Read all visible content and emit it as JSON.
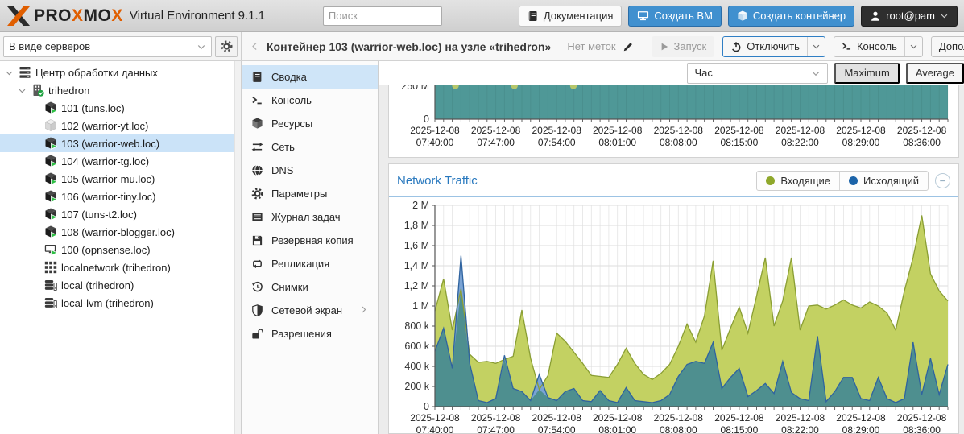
{
  "header": {
    "brand": "PROXMOX",
    "product": "Virtual Environment",
    "version": "9.1.1",
    "search_placeholder": "Поиск",
    "buttons": {
      "docs": "Документация",
      "create_vm": "Создать ВМ",
      "create_ct": "Создать контейнер",
      "user": "root@pam"
    }
  },
  "sidebar": {
    "view_select": "В виде серверов",
    "tree": [
      {
        "name": "datacenter",
        "label": "Центр обработки данных",
        "icon": "datacenter",
        "level": 0,
        "arrow": true
      },
      {
        "name": "node-trihedron",
        "label": "trihedron",
        "icon": "node",
        "level": 1,
        "arrow": true
      },
      {
        "name": "ct-101",
        "label": "101 (tuns.loc)",
        "icon": "ct-running",
        "level": 2
      },
      {
        "name": "ct-102",
        "label": "102 (warrior-yt.loc)",
        "icon": "ct-stopped",
        "level": 2
      },
      {
        "name": "ct-103",
        "label": "103 (warrior-web.loc)",
        "icon": "ct-running",
        "level": 2,
        "selected": true
      },
      {
        "name": "ct-104",
        "label": "104 (warrior-tg.loc)",
        "icon": "ct-running",
        "level": 2
      },
      {
        "name": "ct-105",
        "label": "105 (warrior-mu.loc)",
        "icon": "ct-running",
        "level": 2
      },
      {
        "name": "ct-106",
        "label": "106 (warrior-tiny.loc)",
        "icon": "ct-running",
        "level": 2
      },
      {
        "name": "ct-107",
        "label": "107 (tuns-t2.loc)",
        "icon": "ct-running",
        "level": 2
      },
      {
        "name": "ct-108",
        "label": "108 (warrior-blogger.loc)",
        "icon": "ct-running",
        "level": 2
      },
      {
        "name": "vm-100",
        "label": "100 (opnsense.loc)",
        "icon": "vm-running",
        "level": 2
      },
      {
        "name": "sdn-localnetwork",
        "label": "localnetwork (trihedron)",
        "icon": "network",
        "level": 2
      },
      {
        "name": "storage-local",
        "label": "local (trihedron)",
        "icon": "storage",
        "level": 2
      },
      {
        "name": "storage-local-lvm",
        "label": "local-lvm (trihedron)",
        "icon": "storage",
        "level": 2
      }
    ]
  },
  "breadcrumb": {
    "title": "Контейнер 103 (warrior-web.loc) на узле «trihedron»",
    "tags_label": "Нет меток",
    "actions": {
      "start": "Запуск",
      "shutdown": "Отключить",
      "console": "Консоль",
      "more": "Дополнительно"
    }
  },
  "nav": {
    "items": [
      {
        "name": "summary",
        "label": "Сводка",
        "icon": "book",
        "selected": true
      },
      {
        "name": "console",
        "label": "Консоль",
        "icon": "terminal"
      },
      {
        "name": "resources",
        "label": "Ресурсы",
        "icon": "cube"
      },
      {
        "name": "network",
        "label": "Сеть",
        "icon": "exchange"
      },
      {
        "name": "dns",
        "label": "DNS",
        "icon": "globe"
      },
      {
        "name": "options",
        "label": "Параметры",
        "icon": "gear"
      },
      {
        "name": "task-history",
        "label": "Журнал задач",
        "icon": "tasklist"
      },
      {
        "name": "backup",
        "label": "Резервная копия",
        "icon": "floppy"
      },
      {
        "name": "replication",
        "label": "Репликация",
        "icon": "retweet"
      },
      {
        "name": "snapshots",
        "label": "Снимки",
        "icon": "history"
      },
      {
        "name": "firewall",
        "label": "Сетевой экран",
        "icon": "shield",
        "submenu": true
      },
      {
        "name": "permissions",
        "label": "Разрешения",
        "icon": "unlock"
      }
    ]
  },
  "toolbar": {
    "range": "Час",
    "max": "Maximum",
    "avg": "Average"
  },
  "chart_data": [
    {
      "id": "memory-chart-partial",
      "type": "area",
      "note_visible_part": "bottom sliver only (panel scrolled under toolbar)",
      "y_tick_labels": [
        "250 M",
        "0"
      ],
      "x_date": "2025-12-08",
      "x_times": [
        "07:40:00",
        "07:47:00",
        "07:54:00",
        "08:01:00",
        "08:08:00",
        "08:15:00",
        "08:22:00",
        "08:29:00",
        "08:36:00"
      ],
      "area_color": "#4f9897",
      "area_fills_visible_height": true,
      "usage_bump_fracs": [
        0.04,
        0.155,
        0.27
      ],
      "bump_color": "#c8cf63"
    },
    {
      "id": "network-traffic",
      "type": "area",
      "title": "Network Traffic",
      "legend": [
        {
          "label": "Входящие",
          "color": "#8fa82b"
        },
        {
          "label": "Исходящий",
          "color": "#1c64a9"
        }
      ],
      "ymax_k": 2000,
      "y_tick_labels": [
        "2 M",
        "1,8 M",
        "1,6 M",
        "1,4 M",
        "1,2 M",
        "1 M",
        "800 k",
        "600 k",
        "400 k",
        "200 k",
        "0"
      ],
      "x_date": "2025-12-08",
      "x_times": [
        "07:40:00",
        "07:47:00",
        "07:54:00",
        "08:01:00",
        "08:08:00",
        "08:15:00",
        "08:22:00",
        "08:29:00",
        "08:36:00"
      ],
      "overlap_fill": "#4e8f8f",
      "series": [
        {
          "name": "Входящие",
          "fill": "#c3d162",
          "line": "#8a9e33",
          "values_k": [
            950,
            1270,
            760,
            1170,
            520,
            440,
            450,
            430,
            470,
            500,
            960,
            480,
            170,
            310,
            730,
            650,
            540,
            430,
            310,
            300,
            290,
            420,
            580,
            430,
            320,
            270,
            330,
            420,
            600,
            820,
            640,
            900,
            1450,
            560,
            780,
            990,
            730,
            1100,
            1480,
            800,
            1050,
            1480,
            760,
            1000,
            1010,
            970,
            1010,
            1060,
            1010,
            980,
            1040,
            1000,
            930,
            760,
            1150,
            1480,
            1900,
            1320,
            1150,
            1050
          ]
        },
        {
          "name": "Исходящий",
          "fill": "#7aa3d4",
          "line": "#2f639f",
          "values_k": [
            550,
            780,
            380,
            1500,
            430,
            60,
            40,
            80,
            510,
            180,
            150,
            60,
            320,
            90,
            60,
            150,
            180,
            60,
            50,
            160,
            60,
            40,
            190,
            60,
            50,
            40,
            60,
            120,
            300,
            420,
            450,
            430,
            640,
            180,
            290,
            380,
            100,
            160,
            230,
            130,
            450,
            140,
            80,
            60,
            700,
            50,
            150,
            290,
            290,
            80,
            60,
            290,
            80,
            40,
            80,
            640,
            120,
            480,
            120,
            420
          ]
        }
      ]
    }
  ]
}
